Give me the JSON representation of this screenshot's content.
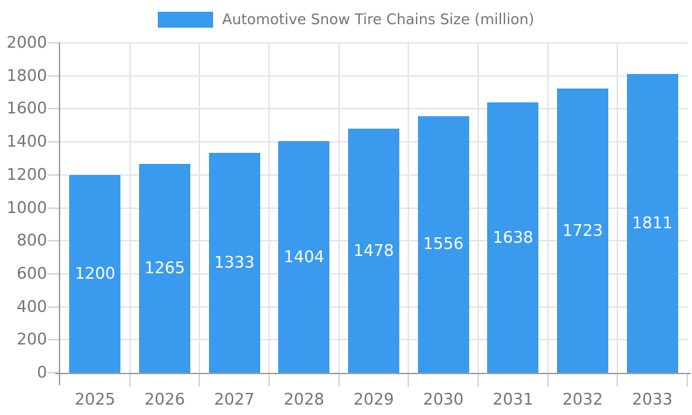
{
  "legend": {
    "label": "Automotive Snow Tire Chains Size (million)"
  },
  "chart_data": {
    "type": "bar",
    "title": "Automotive Snow Tire Chains Size (million)",
    "categories": [
      "2025",
      "2026",
      "2027",
      "2028",
      "2029",
      "2030",
      "2031",
      "2032",
      "2033"
    ],
    "values": [
      1200,
      1265,
      1333,
      1404,
      1478,
      1556,
      1638,
      1723,
      1811
    ],
    "xlabel": "",
    "ylabel": "",
    "ylim": [
      0,
      2000
    ],
    "ytick_step": 200,
    "grid": true,
    "legend_position": "top",
    "value_labels": "inside-center",
    "colors": {
      "bar": "#3A9AEE",
      "text": "#757575",
      "axis": "#9E9E9E",
      "grid": "#E4E4E4",
      "tick": "#D4D4D4",
      "bar_label": "#FFFFFF",
      "background": "#FFFFFF"
    }
  }
}
